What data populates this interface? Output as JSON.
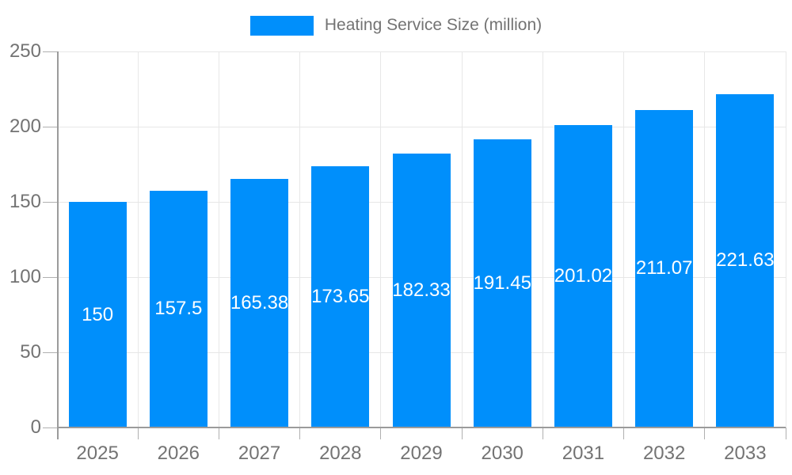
{
  "legend": {
    "label": "Heating Service Size (million)"
  },
  "chart_data": {
    "type": "bar",
    "title": "",
    "xlabel": "",
    "ylabel": "",
    "categories": [
      "2025",
      "2026",
      "2027",
      "2028",
      "2029",
      "2030",
      "2031",
      "2032",
      "2033"
    ],
    "series": [
      {
        "name": "Heating Service Size (million)",
        "values": [
          150,
          157.5,
          165.38,
          173.65,
          182.33,
          191.45,
          201.02,
          211.07,
          221.63
        ],
        "value_labels": [
          "150",
          "157.5",
          "165.38",
          "173.65",
          "182.33",
          "191.45",
          "201.02",
          "211.07",
          "221.63"
        ]
      }
    ],
    "ylim": [
      0,
      250
    ],
    "yticks": [
      0,
      50,
      100,
      150,
      200,
      250
    ],
    "grid": true,
    "legend_position": "top",
    "colors": {
      "bar": "#008ffb",
      "grid": "#e7e7e7",
      "axis": "#9b9b9b",
      "tick_mark": "#b0b0b0",
      "axis_text": "#737373",
      "value_text": "#ffffff"
    }
  }
}
